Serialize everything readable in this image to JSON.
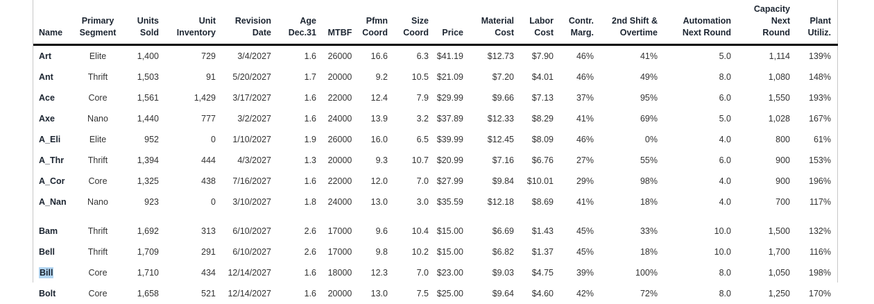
{
  "report": {
    "columns": [
      {
        "id": "name",
        "label_lines": [
          "Name"
        ],
        "align": "left"
      },
      {
        "id": "primary-segment",
        "label_lines": [
          "Primary",
          "Segment"
        ],
        "align": "center"
      },
      {
        "id": "units-sold",
        "label_lines": [
          "Units",
          "Sold"
        ],
        "align": "right"
      },
      {
        "id": "unit-inventory",
        "label_lines": [
          "Unit",
          "Inventory"
        ],
        "align": "right"
      },
      {
        "id": "revision-date",
        "label_lines": [
          "Revision",
          "Date"
        ],
        "align": "right"
      },
      {
        "id": "age-dec31",
        "label_lines": [
          "Age",
          "Dec.31"
        ],
        "align": "right"
      },
      {
        "id": "mtbf",
        "label_lines": [
          "MTBF"
        ],
        "align": "center"
      },
      {
        "id": "pfmn-coord",
        "label_lines": [
          "Pfmn",
          "Coord"
        ],
        "align": "right"
      },
      {
        "id": "size-coord",
        "label_lines": [
          "Size",
          "Coord"
        ],
        "align": "right"
      },
      {
        "id": "price",
        "label_lines": [
          "Price"
        ],
        "align": "right"
      },
      {
        "id": "material-cost",
        "label_lines": [
          "Material",
          "Cost"
        ],
        "align": "right"
      },
      {
        "id": "labor-cost",
        "label_lines": [
          "Labor",
          "Cost"
        ],
        "align": "right"
      },
      {
        "id": "contr-marg",
        "label_lines": [
          "Contr.",
          "Marg."
        ],
        "align": "right"
      },
      {
        "id": "second-shift-overtime",
        "label_lines": [
          "2nd Shift &",
          "Overtime"
        ],
        "align": "right"
      },
      {
        "id": "automation-next-round",
        "label_lines": [
          "Automation",
          "Next Round"
        ],
        "align": "right"
      },
      {
        "id": "capacity-next-round",
        "label_lines": [
          "Capacity",
          "Next",
          "Round"
        ],
        "align": "right"
      },
      {
        "id": "plant-utiliz",
        "label_lines": [
          "Plant",
          "Utiliz."
        ],
        "align": "right"
      }
    ],
    "row_groups": [
      {
        "rows": [
          [
            "Art",
            "Elite",
            "1,400",
            "729",
            "3/4/2027",
            "1.6",
            "26000",
            "16.6",
            "6.3",
            "$41.19",
            "$12.73",
            "$7.90",
            "46%",
            "41%",
            "5.0",
            "1,114",
            "139%"
          ],
          [
            "Ant",
            "Thrift",
            "1,503",
            "91",
            "5/20/2027",
            "1.7",
            "20000",
            "9.2",
            "10.5",
            "$21.09",
            "$7.20",
            "$4.01",
            "46%",
            "49%",
            "8.0",
            "1,080",
            "148%"
          ],
          [
            "Ace",
            "Core",
            "1,561",
            "1,429",
            "3/17/2027",
            "1.6",
            "22000",
            "12.4",
            "7.9",
            "$29.99",
            "$9.66",
            "$7.13",
            "37%",
            "95%",
            "6.0",
            "1,550",
            "193%"
          ],
          [
            "Axe",
            "Nano",
            "1,440",
            "777",
            "3/2/2027",
            "1.6",
            "24000",
            "13.9",
            "3.2",
            "$37.89",
            "$12.33",
            "$8.29",
            "41%",
            "69%",
            "5.0",
            "1,028",
            "167%"
          ],
          [
            "A_Eli",
            "Elite",
            "952",
            "0",
            "1/10/2027",
            "1.9",
            "26000",
            "16.0",
            "6.5",
            "$39.99",
            "$12.45",
            "$8.09",
            "46%",
            "0%",
            "4.0",
            "800",
            "61%"
          ],
          [
            "A_Thr",
            "Thrift",
            "1,394",
            "444",
            "4/3/2027",
            "1.3",
            "20000",
            "9.3",
            "10.7",
            "$20.99",
            "$7.16",
            "$6.76",
            "27%",
            "55%",
            "6.0",
            "900",
            "153%"
          ],
          [
            "A_Cor",
            "Core",
            "1,325",
            "438",
            "7/16/2027",
            "1.6",
            "22000",
            "12.0",
            "7.0",
            "$27.99",
            "$9.84",
            "$10.01",
            "29%",
            "98%",
            "4.0",
            "900",
            "196%"
          ],
          [
            "A_Nan",
            "Nano",
            "923",
            "0",
            "3/10/2027",
            "1.8",
            "24000",
            "13.0",
            "3.0",
            "$35.59",
            "$12.18",
            "$8.69",
            "41%",
            "18%",
            "4.0",
            "700",
            "117%"
          ]
        ]
      },
      {
        "rows": [
          [
            "Bam",
            "Thrift",
            "1,692",
            "313",
            "6/10/2027",
            "2.6",
            "17000",
            "9.6",
            "10.4",
            "$15.00",
            "$6.69",
            "$1.43",
            "45%",
            "33%",
            "10.0",
            "1,500",
            "132%"
          ],
          [
            "Bell",
            "Thrift",
            "1,709",
            "291",
            "6/10/2027",
            "2.6",
            "17000",
            "9.8",
            "10.2",
            "$15.00",
            "$6.82",
            "$1.37",
            "45%",
            "18%",
            "10.0",
            "1,700",
            "116%"
          ],
          [
            "Bill",
            "Core",
            "1,710",
            "434",
            "12/14/2027",
            "1.6",
            "18000",
            "12.3",
            "7.0",
            "$23.00",
            "$9.03",
            "$4.75",
            "39%",
            "100%",
            "8.0",
            "1,050",
            "198%"
          ],
          [
            "Bolt",
            "Core",
            "1,658",
            "521",
            "12/14/2027",
            "1.6",
            "20000",
            "13.0",
            "7.5",
            "$25.00",
            "$9.64",
            "$4.60",
            "42%",
            "72%",
            "8.0",
            "1,250",
            "170%"
          ]
        ]
      }
    ],
    "selection": {
      "selected_text": "Bill"
    },
    "colors": {
      "header_text": "#1c2531",
      "body_text": "#333333",
      "frame_border": "#c8c8c8",
      "header_rule": "#000000",
      "selection_highlight": "#b3d6f2"
    }
  }
}
